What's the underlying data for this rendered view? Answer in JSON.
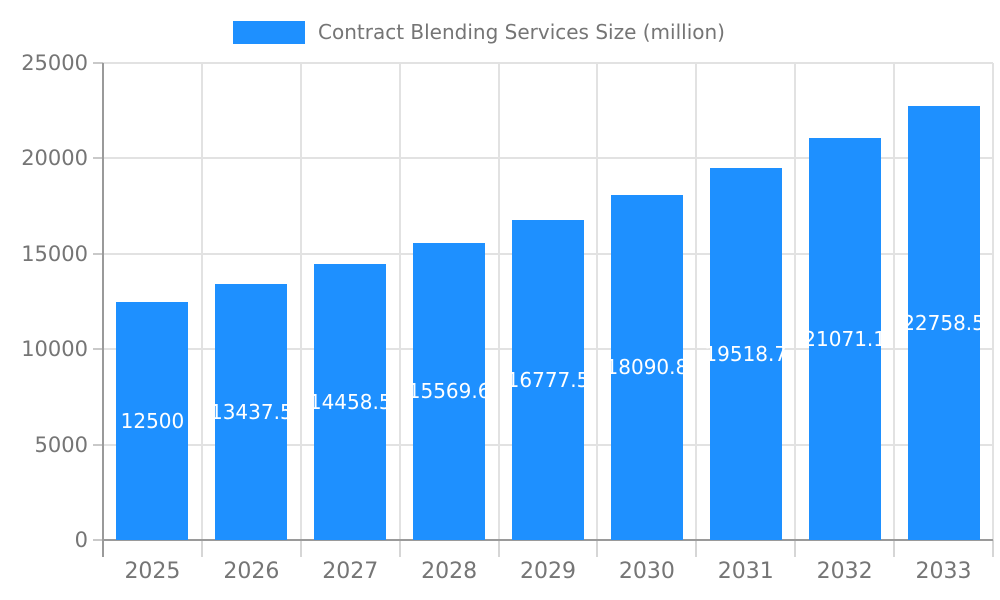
{
  "legend": {
    "label": "Contract Blending Services Size (million)",
    "swatch_color": "#1e90ff"
  },
  "chart_data": {
    "type": "bar",
    "title": "Contract Blending Services Size (million)",
    "categories": [
      "2025",
      "2026",
      "2027",
      "2028",
      "2029",
      "2030",
      "2031",
      "2032",
      "2033"
    ],
    "values": [
      12500,
      13437.5,
      14458.5,
      15569.6,
      16777.5,
      18090.8,
      19518.7,
      21071.1,
      22758.5
    ],
    "bar_labels": [
      "12500",
      "13437.5",
      "14458.5",
      "15569.6",
      "16777.5",
      "18090.8",
      "19518.7",
      "21071.1",
      "22758.5"
    ],
    "bar_label_position": "center-inside",
    "xlabel": "",
    "ylabel": "",
    "ylim": [
      0,
      25000
    ],
    "yticks": [
      0,
      5000,
      10000,
      15000,
      20000,
      25000
    ],
    "grid": "horizontal and vertical light gridlines",
    "legend_position": "top-center",
    "colors": {
      "bar": "#1e90ff",
      "bar_label_text": "#ffffff",
      "axis_text": "#757575",
      "axis_line": "#9a9a9a",
      "gridline": "#e2e2e2",
      "background": "#ffffff"
    }
  }
}
